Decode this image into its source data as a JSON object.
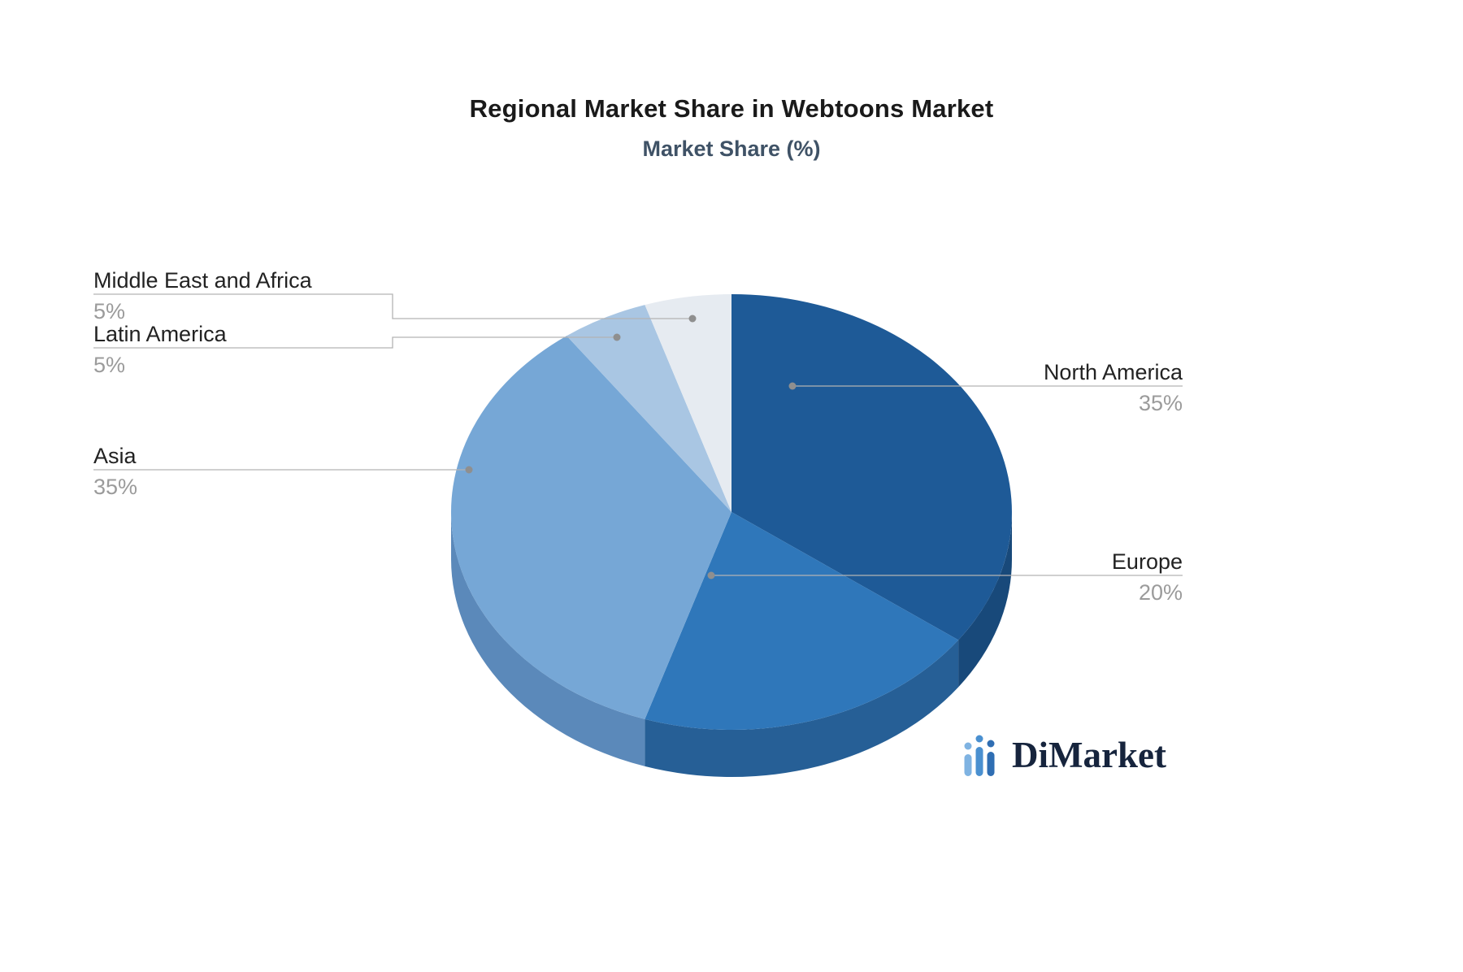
{
  "page": {
    "title": "Regional Market Share in Webtoons Market",
    "subtitle": "Market Share (%)"
  },
  "brand": {
    "name": "DiMarket",
    "icon": "bar-chart-logo",
    "icon_colors": [
      "#7fb3e2",
      "#4a90d0",
      "#2f6eb3"
    ],
    "text_color": "#16243d"
  },
  "chart_data": {
    "type": "pie",
    "title": "Regional Market Share in Webtoons Market",
    "subtitle": "Market Share (%)",
    "unit": "%",
    "start_angle_deg": -90,
    "direction": "clockwise",
    "effect_3d": true,
    "legend_position": "callout-labels",
    "slices": [
      {
        "label": "North America",
        "value": 35,
        "display": "35%",
        "color": "#1e5a97",
        "side_color": "#18497a"
      },
      {
        "label": "Europe",
        "value": 20,
        "display": "20%",
        "color": "#2f77ba",
        "side_color": "#265f96"
      },
      {
        "label": "Asia",
        "value": 35,
        "display": "35%",
        "color": "#76a7d6",
        "side_color": "#5b89ba"
      },
      {
        "label": "Latin America",
        "value": 5,
        "display": "5%",
        "color": "#a9c6e3",
        "side_color": "#8fb3d4"
      },
      {
        "label": "Middle East and Africa",
        "value": 5,
        "display": "5%",
        "color": "#e6ebf1",
        "side_color": "#c9d5e2"
      }
    ],
    "label_color": "#222222",
    "value_color": "#9b9b9b",
    "line_color": "#b3b3b3",
    "dot_color": "#8f8f8f"
  }
}
